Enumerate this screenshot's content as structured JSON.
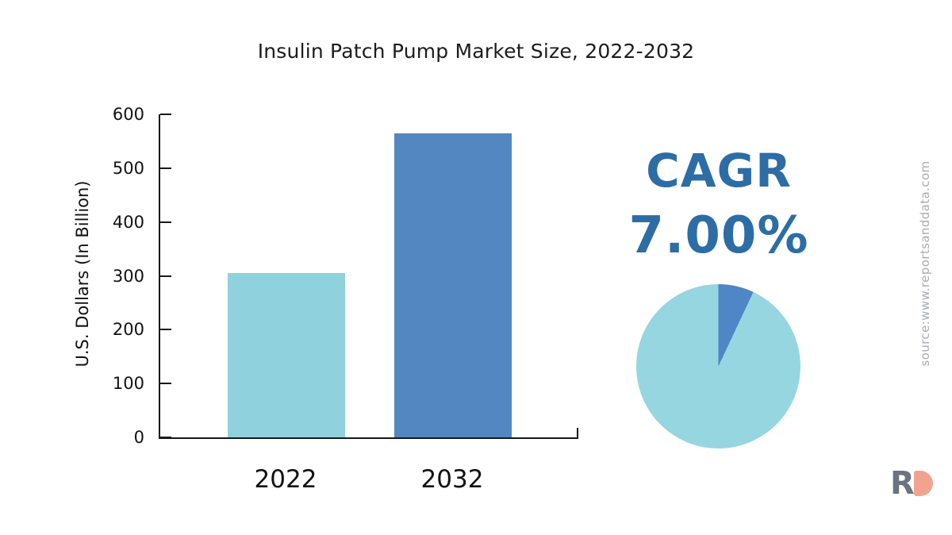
{
  "chart_data": [
    {
      "type": "bar",
      "title": "Insulin Patch Pump Market Size, 2022-2032",
      "categories": [
        "2022",
        "2032"
      ],
      "values": [
        305,
        565
      ],
      "xlabel": "",
      "ylabel": "U.S. Dollars (In Billion)",
      "ylim": [
        0,
        600
      ],
      "yticks": [
        0,
        100,
        200,
        300,
        400,
        500,
        600
      ],
      "bar_colors": [
        "#8fd2dd",
        "#5287c1"
      ],
      "grid": false,
      "legend": false,
      "annotation": "CAGR 7.00%"
    },
    {
      "type": "pie",
      "labels": [
        "CAGR highlight",
        "remainder"
      ],
      "values": [
        7,
        93
      ],
      "colors": [
        "#4e86c6",
        "#96d6e1"
      ],
      "start_angle_deg": 0,
      "direction": "clockwise",
      "legend": false
    }
  ],
  "cagr": {
    "label": "CAGR",
    "value": "7.00%",
    "color": "#2d6da6"
  },
  "source": {
    "text": "source:www.reportsanddata.com"
  },
  "logo": {
    "letter": "R",
    "r_color": "#6b7380",
    "d_color": "#f2a38f"
  }
}
